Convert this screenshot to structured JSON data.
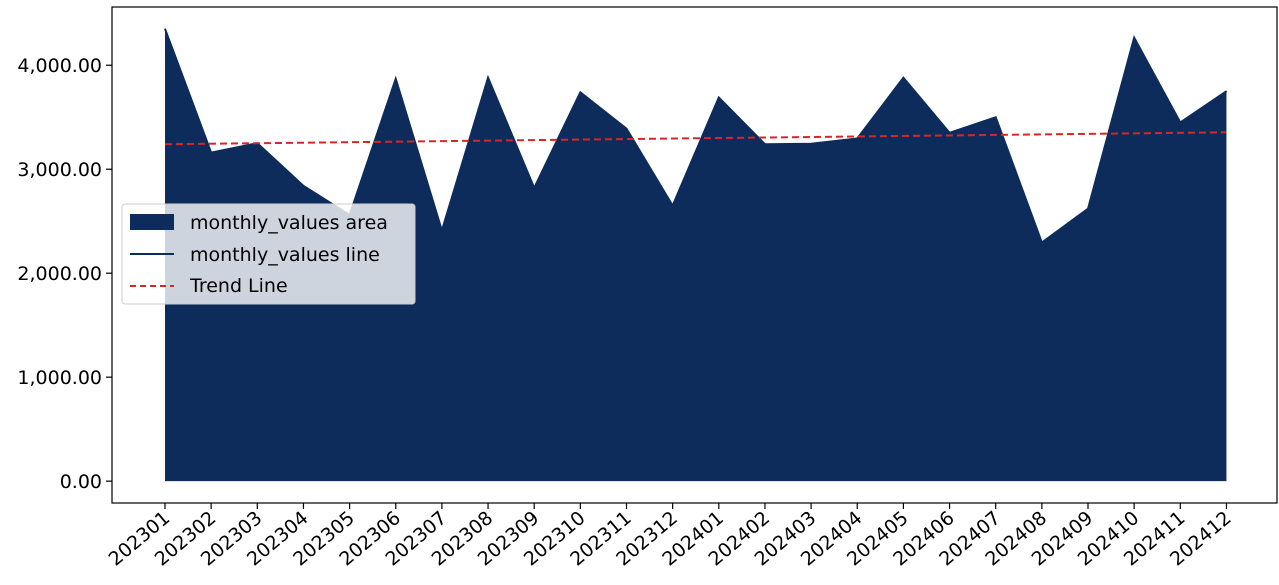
{
  "chart_data": {
    "type": "area",
    "title": "",
    "xlabel": "",
    "ylabel": "",
    "categories": [
      "202301",
      "202302",
      "202303",
      "202304",
      "202305",
      "202306",
      "202307",
      "202308",
      "202309",
      "202310",
      "202311",
      "202312",
      "202401",
      "202402",
      "202403",
      "202404",
      "202405",
      "202406",
      "202407",
      "202408",
      "202409",
      "202410",
      "202411",
      "202412"
    ],
    "series": [
      {
        "name": "monthly_values",
        "values": [
          4350,
          3160,
          3250,
          2840,
          2560,
          3870,
          2410,
          3880,
          2820,
          3740,
          3390,
          2650,
          3690,
          3240,
          3245,
          3295,
          3880,
          3350,
          3500,
          2295,
          2620,
          4265,
          3450,
          3750
        ],
        "color": "#0d2c5c"
      }
    ],
    "trend_line": {
      "start": 3240,
      "end": 3355,
      "color": "#d62728",
      "style": "dashed"
    },
    "ylim": [
      -210,
      4560
    ],
    "yticks": [
      0,
      1000,
      2000,
      3000,
      4000
    ],
    "ytick_labels": [
      "0.00",
      "1,000.00",
      "2,000.00",
      "3,000.00",
      "4,000.00"
    ],
    "grid": false,
    "legend": {
      "placement": "center-left",
      "entries": [
        "monthly_values area",
        "monthly_values line",
        "Trend Line"
      ]
    }
  }
}
